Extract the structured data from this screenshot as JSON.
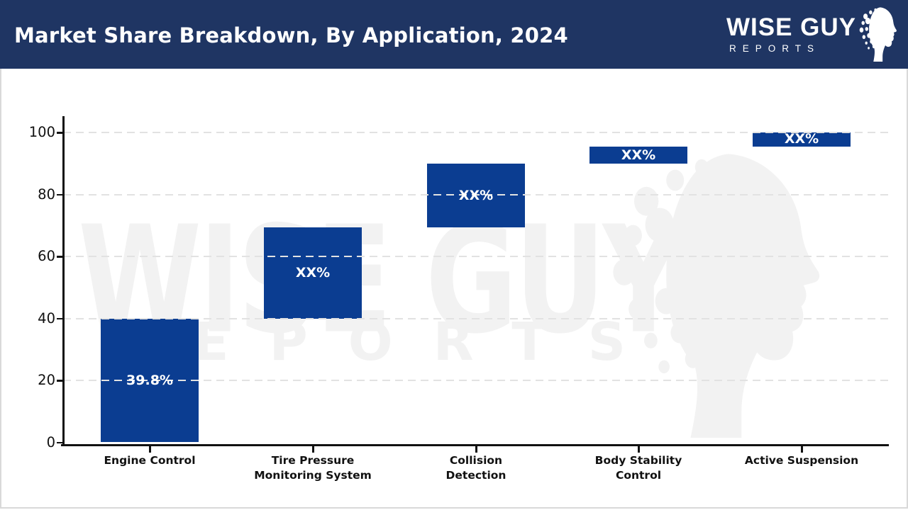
{
  "header": {
    "title": "Market Share Breakdown, By Application, 2024",
    "logo_line1": "WISE GUY",
    "logo_line2": "REPORTS"
  },
  "watermark": {
    "line1": "WISE GUY",
    "line2": "REPORTS"
  },
  "colors": {
    "header_bg": "#1f3563",
    "bar_blue": "#0b3d91",
    "watermark_gray": "#f2f2f2",
    "grid_gray": "#e2e2e2"
  },
  "chart_data": {
    "type": "bar",
    "subtype": "waterfall",
    "title": "Market Share Breakdown, By Application, 2024",
    "xlabel": "",
    "ylabel": "",
    "categories": [
      "Engine Control",
      "Tire Pressure Monitoring System",
      "Collision Detection",
      "Body Stability Control",
      "Active Suspension"
    ],
    "category_lines": [
      [
        "Engine Control"
      ],
      [
        "Tire Pressure",
        "Monitoring System"
      ],
      [
        "Collision",
        "Detection"
      ],
      [
        "Body Stability",
        "Control"
      ],
      [
        "Active Suspension"
      ]
    ],
    "series": [
      {
        "name": "Market Share %",
        "starts": [
          0,
          39.8,
          69.4,
          90.0,
          95.5
        ],
        "values": [
          39.8,
          29.6,
          20.6,
          5.5,
          4.5
        ]
      }
    ],
    "bar_labels": [
      "39.8%",
      "XX%",
      "XX%",
      "XX%",
      "XX%"
    ],
    "ylim": [
      0,
      100
    ],
    "yticks": [
      0,
      20,
      40,
      60,
      80,
      100
    ],
    "grid": "horizontal-dashed",
    "legend": "none",
    "bar_color": "#0b3d91",
    "bar_label_color": "#ffffff"
  }
}
